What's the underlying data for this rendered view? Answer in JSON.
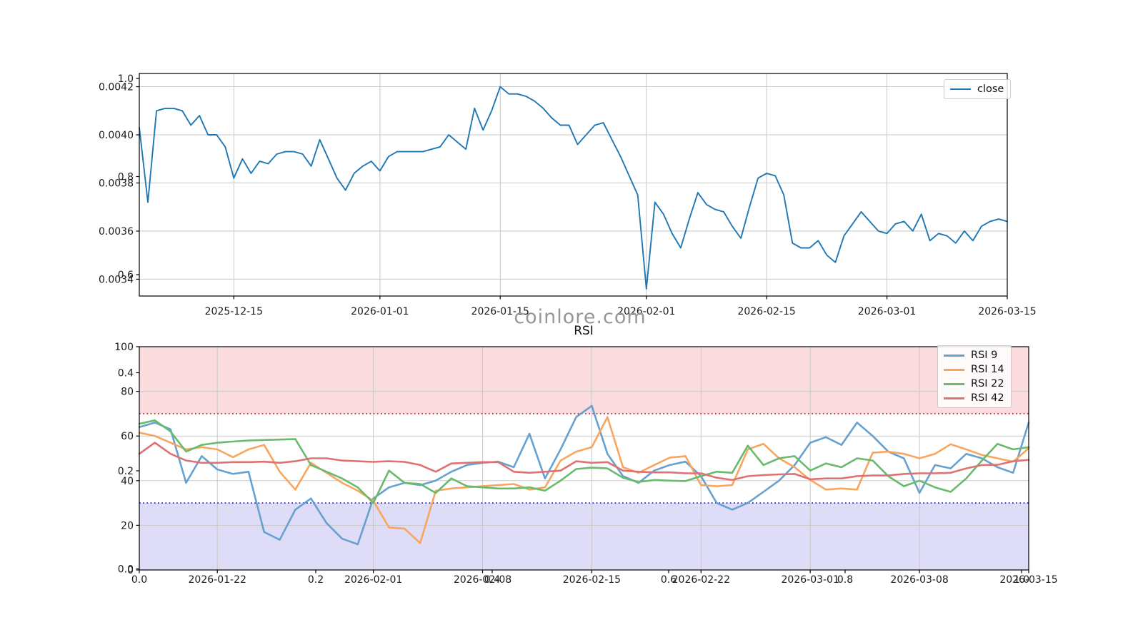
{
  "watermark": {
    "text": "coinlore.com",
    "color": "#979797"
  },
  "figure_axis": {
    "x_ticks": [
      "0.0",
      "0.2",
      "0.4",
      "0.6",
      "0.8",
      "1.0"
    ],
    "y_ticks": [
      "1.0",
      "0.8",
      "0.6",
      "0.4",
      "0.2",
      "0.0"
    ]
  },
  "chart_data": [
    {
      "id": "price",
      "type": "line",
      "title": "",
      "grid": true,
      "x_start": "2025-12-04",
      "x_end": "2026-03-15",
      "ylim": [
        0.00333,
        0.004255
      ],
      "y_ticks": [
        {
          "value": 0.0034,
          "label": "0.0034"
        },
        {
          "value": 0.0036,
          "label": "0.0036"
        },
        {
          "value": 0.0038,
          "label": "0.0038"
        },
        {
          "value": 0.004,
          "label": "0.0040"
        },
        {
          "value": 0.0042,
          "label": "0.0042"
        }
      ],
      "x_ticks": [
        {
          "day": 11,
          "label": "2025-12-15"
        },
        {
          "day": 28,
          "label": "2026-01-01"
        },
        {
          "day": 42,
          "label": "2026-01-15"
        },
        {
          "day": 59,
          "label": "2026-02-01"
        },
        {
          "day": 73,
          "label": "2026-02-15"
        },
        {
          "day": 87,
          "label": "2026-03-01"
        },
        {
          "day": 101,
          "label": "2026-03-15"
        }
      ],
      "legend": {
        "position": "upper right",
        "entries": [
          {
            "label": "close",
            "color": "#1f77b4",
            "sample_width": 2
          }
        ]
      },
      "series": [
        {
          "name": "close",
          "color": "#1f77b4",
          "width": 1.9,
          "values": [
            0.00403,
            0.00372,
            0.0041,
            0.00411,
            0.00411,
            0.0041,
            0.00404,
            0.00408,
            0.004,
            0.004,
            0.00395,
            0.00382,
            0.0039,
            0.00384,
            0.00389,
            0.00388,
            0.00392,
            0.00393,
            0.00393,
            0.00392,
            0.00387,
            0.00398,
            0.0039,
            0.00382,
            0.00377,
            0.00384,
            0.00387,
            0.00389,
            0.00385,
            0.00391,
            0.00393,
            0.00393,
            0.00393,
            0.00393,
            0.00394,
            0.00395,
            0.004,
            0.00397,
            0.00394,
            0.00411,
            0.00402,
            0.0041,
            0.0042,
            0.00417,
            0.00417,
            0.00416,
            0.00414,
            0.00411,
            0.00407,
            0.00404,
            0.00404,
            0.00396,
            0.004,
            0.00404,
            0.00405,
            0.00398,
            0.00391,
            0.00383,
            0.00375,
            0.00336,
            0.00372,
            0.00367,
            0.00359,
            0.00353,
            0.00365,
            0.00376,
            0.00371,
            0.00369,
            0.00368,
            0.00362,
            0.00357,
            0.0037,
            0.00382,
            0.00384,
            0.00383,
            0.00375,
            0.00355,
            0.00353,
            0.00353,
            0.00356,
            0.0035,
            0.00347,
            0.00358,
            0.00363,
            0.00368,
            0.00364,
            0.0036,
            0.00359,
            0.00363,
            0.00364,
            0.0036,
            0.00367,
            0.00356,
            0.00359,
            0.00358,
            0.00355,
            0.0036,
            0.00356,
            0.00362,
            0.00364,
            0.00365,
            0.00364
          ]
        }
      ]
    },
    {
      "id": "rsi",
      "type": "line",
      "title": "RSI",
      "grid": true,
      "x_start": "2026-01-17",
      "x_end": "2026-03-15",
      "ylim": [
        0,
        100
      ],
      "y_ticks": [
        {
          "value": 0,
          "label": "0"
        },
        {
          "value": 20,
          "label": "20"
        },
        {
          "value": 40,
          "label": "40"
        },
        {
          "value": 60,
          "label": "60"
        },
        {
          "value": 80,
          "label": "80"
        },
        {
          "value": 100,
          "label": "100"
        }
      ],
      "x_ticks": [
        {
          "day": 5,
          "label": "2026-01-22"
        },
        {
          "day": 15,
          "label": "2026-02-01"
        },
        {
          "day": 22,
          "label": "2026-02-08"
        },
        {
          "day": 29,
          "label": "2026-02-15"
        },
        {
          "day": 36,
          "label": "2026-02-22"
        },
        {
          "day": 43,
          "label": "2026-03-01"
        },
        {
          "day": 50,
          "label": "2026-03-08"
        },
        {
          "day": 57,
          "label": "2026-03-15"
        }
      ],
      "overbought": {
        "value": 70,
        "line_color": "#e02222",
        "band_color": "#fbdbde"
      },
      "oversold": {
        "value": 30,
        "line_color": "#2222cc",
        "band_color": "#dedcf6"
      },
      "legend": {
        "position": "upper right",
        "entries": [
          {
            "label": "RSI 9",
            "color": "#67a1cf",
            "sample_width": 3
          },
          {
            "label": "RSI 14",
            "color": "#f8a55e",
            "sample_width": 3
          },
          {
            "label": "RSI 22",
            "color": "#68bb6c",
            "sample_width": 3
          },
          {
            "label": "RSI 42",
            "color": "#de7273",
            "sample_width": 3
          }
        ]
      },
      "series": [
        {
          "name": "RSI 9",
          "color": "#67a1cf",
          "width": 2.6,
          "values": [
            64,
            66,
            63,
            39,
            51,
            45,
            43,
            44,
            17,
            13.5,
            27,
            32,
            21,
            14,
            11.5,
            32,
            37,
            39,
            38,
            40,
            44,
            47,
            48,
            48.5,
            46,
            61,
            41,
            54,
            68.5,
            73.5,
            52,
            42,
            39,
            44.5,
            47,
            48.5,
            42,
            30,
            27,
            30,
            35,
            40,
            47,
            57,
            59.5,
            56,
            66,
            60,
            53,
            50,
            34.5,
            47,
            45.5,
            52,
            50,
            46,
            43.5,
            66
          ]
        },
        {
          "name": "RSI 14",
          "color": "#f8a55e",
          "width": 2.6,
          "values": [
            61.5,
            60,
            57,
            54,
            55,
            54,
            50.5,
            54,
            56,
            44,
            36,
            48,
            43.5,
            39,
            35.5,
            31,
            19,
            18.5,
            12,
            35.5,
            36.5,
            37,
            37.5,
            38,
            38.5,
            36,
            37,
            49,
            53,
            55,
            68.5,
            46,
            43.5,
            47,
            50.3,
            51,
            38,
            37.5,
            38,
            54,
            56.5,
            50,
            46,
            40.3,
            36,
            36.5,
            36,
            52.5,
            53,
            52,
            50,
            52,
            56.3,
            54,
            51.5,
            50,
            48.5,
            54.5
          ]
        },
        {
          "name": "RSI 22",
          "color": "#68bb6c",
          "width": 2.6,
          "values": [
            65.5,
            67,
            62,
            53,
            56,
            57,
            57.5,
            58,
            58.2,
            58.4,
            58.6,
            47,
            44,
            41,
            37,
            30,
            44.5,
            39,
            38.5,
            34.5,
            41,
            37.5,
            37,
            36.5,
            36.5,
            37,
            35.5,
            40,
            45.2,
            45.8,
            45.5,
            41.3,
            39.4,
            40.3,
            40,
            39.8,
            42,
            44,
            43.5,
            55.7,
            47,
            50,
            51,
            44.5,
            47.7,
            46,
            50,
            49,
            42,
            37.5,
            40,
            37,
            35,
            41,
            49,
            56.5,
            54,
            55
          ]
        },
        {
          "name": "RSI 42",
          "color": "#de7273",
          "width": 2.6,
          "values": [
            52,
            57,
            52,
            49,
            48,
            48,
            48.3,
            48.3,
            48.5,
            48,
            48.7,
            50,
            50,
            49,
            48.7,
            48.4,
            48.7,
            48.4,
            47,
            44,
            47.7,
            48,
            48.3,
            48.3,
            44,
            43.5,
            44,
            44.5,
            48.7,
            48,
            48.3,
            44.5,
            44,
            43.7,
            43.7,
            43.3,
            43.3,
            41.3,
            40.3,
            42,
            42.5,
            42.8,
            43,
            40.6,
            41,
            41,
            42,
            42.3,
            42.3,
            43,
            43.3,
            43.3,
            43.5,
            45.5,
            47,
            47.1,
            48.7,
            49.3
          ]
        }
      ]
    }
  ]
}
